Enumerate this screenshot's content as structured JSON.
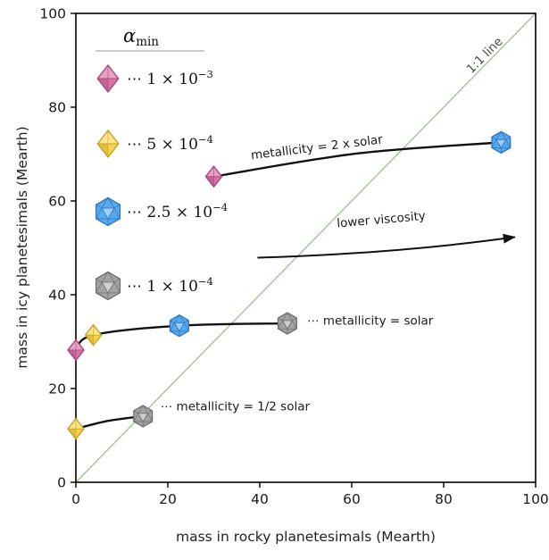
{
  "chart_data": {
    "type": "scatter",
    "title": "",
    "xlabel": "mass in rocky planetesimals (Mearth)",
    "ylabel": "mass in icy planetesimals (Mearth)",
    "xlim": [
      0,
      100
    ],
    "ylim": [
      0,
      100
    ],
    "xticks": [
      0,
      20,
      40,
      60,
      80,
      100
    ],
    "yticks": [
      0,
      20,
      40,
      60,
      80,
      100
    ],
    "grid": false,
    "colors": {
      "pink": {
        "base": "#d873a6",
        "light": "#eeb0cd",
        "dark": "#a84c7e"
      },
      "yellow": {
        "base": "#f3d44e",
        "light": "#fbeb9f",
        "dark": "#c7a22a"
      },
      "blue": {
        "base": "#58a9ee",
        "light": "#a3d0f7",
        "dark": "#2f77bf"
      },
      "gray": {
        "base": "#a3a3a3",
        "light": "#d2d2d2",
        "dark": "#6f6f6f"
      },
      "line": "#111111",
      "text": "#1a1a1a"
    },
    "reference_line": {
      "from": [
        0,
        0
      ],
      "to": [
        100,
        100
      ],
      "label": "1:1 line",
      "label_x": 89.5,
      "label_y": 90.5,
      "label_rotation": -45,
      "color": "#a3c496",
      "label_color": "#44503f"
    },
    "legend": {
      "title_symbol": "α",
      "title_subscript": "min",
      "entries": [
        {
          "marker": "diamond",
          "color": "pink",
          "leader": "⋯",
          "mantissa": "1 × 10",
          "exponent": "−3",
          "value": "1e-3"
        },
        {
          "marker": "diamond",
          "color": "yellow",
          "leader": "⋯",
          "mantissa": "5 × 10",
          "exponent": "−4",
          "value": "5e-4"
        },
        {
          "marker": "icosahedron",
          "color": "blue",
          "leader": "⋯",
          "mantissa": "2.5 × 10",
          "exponent": "−4",
          "value": "2.5e-4"
        },
        {
          "marker": "icosahedron",
          "color": "gray",
          "leader": "⋯",
          "mantissa": "1 × 10",
          "exponent": "−4",
          "value": "1e-4"
        }
      ]
    },
    "series": [
      {
        "name": "metallicity = 2 x solar",
        "label": {
          "text": "metallicity = 2 x solar",
          "x": 52.5,
          "y": 70.6,
          "rotation": -7,
          "anchor": "middle"
        },
        "line": [
          [
            30,
            65.2
          ],
          [
            61,
            70.1
          ],
          [
            92.5,
            72.5
          ]
        ],
        "markers": [
          {
            "x": 30,
            "y": 65.2,
            "marker": "diamond",
            "color": "pink",
            "alpha_min": "1e-3"
          },
          {
            "x": 92.5,
            "y": 72.5,
            "marker": "icosahedron",
            "color": "blue",
            "alpha_min": "2.5e-4"
          }
        ]
      },
      {
        "name": "metallicity = solar",
        "label": {
          "text": "⋯  metallicity = solar",
          "x": 50.3,
          "y": 33.6,
          "rotation": 0,
          "anchor": "start"
        },
        "line": [
          [
            0,
            28.2
          ],
          [
            3.8,
            31.4
          ],
          [
            22.5,
            33.4
          ],
          [
            46,
            33.9
          ]
        ],
        "markers": [
          {
            "x": 0,
            "y": 28.2,
            "marker": "diamond",
            "color": "pink",
            "alpha_min": "1e-3"
          },
          {
            "x": 3.8,
            "y": 31.4,
            "marker": "diamond",
            "color": "yellow",
            "alpha_min": "5e-4"
          },
          {
            "x": 22.5,
            "y": 33.4,
            "marker": "icosahedron",
            "color": "blue",
            "alpha_min": "2.5e-4"
          },
          {
            "x": 46,
            "y": 33.9,
            "marker": "icosahedron",
            "color": "gray",
            "alpha_min": "1e-4"
          }
        ]
      },
      {
        "name": "metallicity = 1/2 solar",
        "label": {
          "text": "⋯  metallicity = 1/2 solar",
          "x": 18.4,
          "y": 15.3,
          "rotation": 0,
          "anchor": "start"
        },
        "line": [
          [
            0,
            11.4
          ],
          [
            7,
            13.1
          ],
          [
            14.6,
            14.1
          ]
        ],
        "markers": [
          {
            "x": 0,
            "y": 11.4,
            "marker": "diamond",
            "color": "yellow",
            "alpha_min": "5e-4"
          },
          {
            "x": 14.6,
            "y": 14.1,
            "marker": "icosahedron",
            "color": "gray",
            "alpha_min": "1e-4"
          }
        ]
      }
    ],
    "annotations": [
      {
        "text": "lower viscosity",
        "x": 66.5,
        "y": 55.2,
        "rotation": -5,
        "anchor": "middle"
      }
    ],
    "arrow": {
      "from": [
        39.5,
        47.9
      ],
      "ctrl": [
        70,
        48.8
      ],
      "to": [
        95.5,
        52.3
      ]
    }
  }
}
